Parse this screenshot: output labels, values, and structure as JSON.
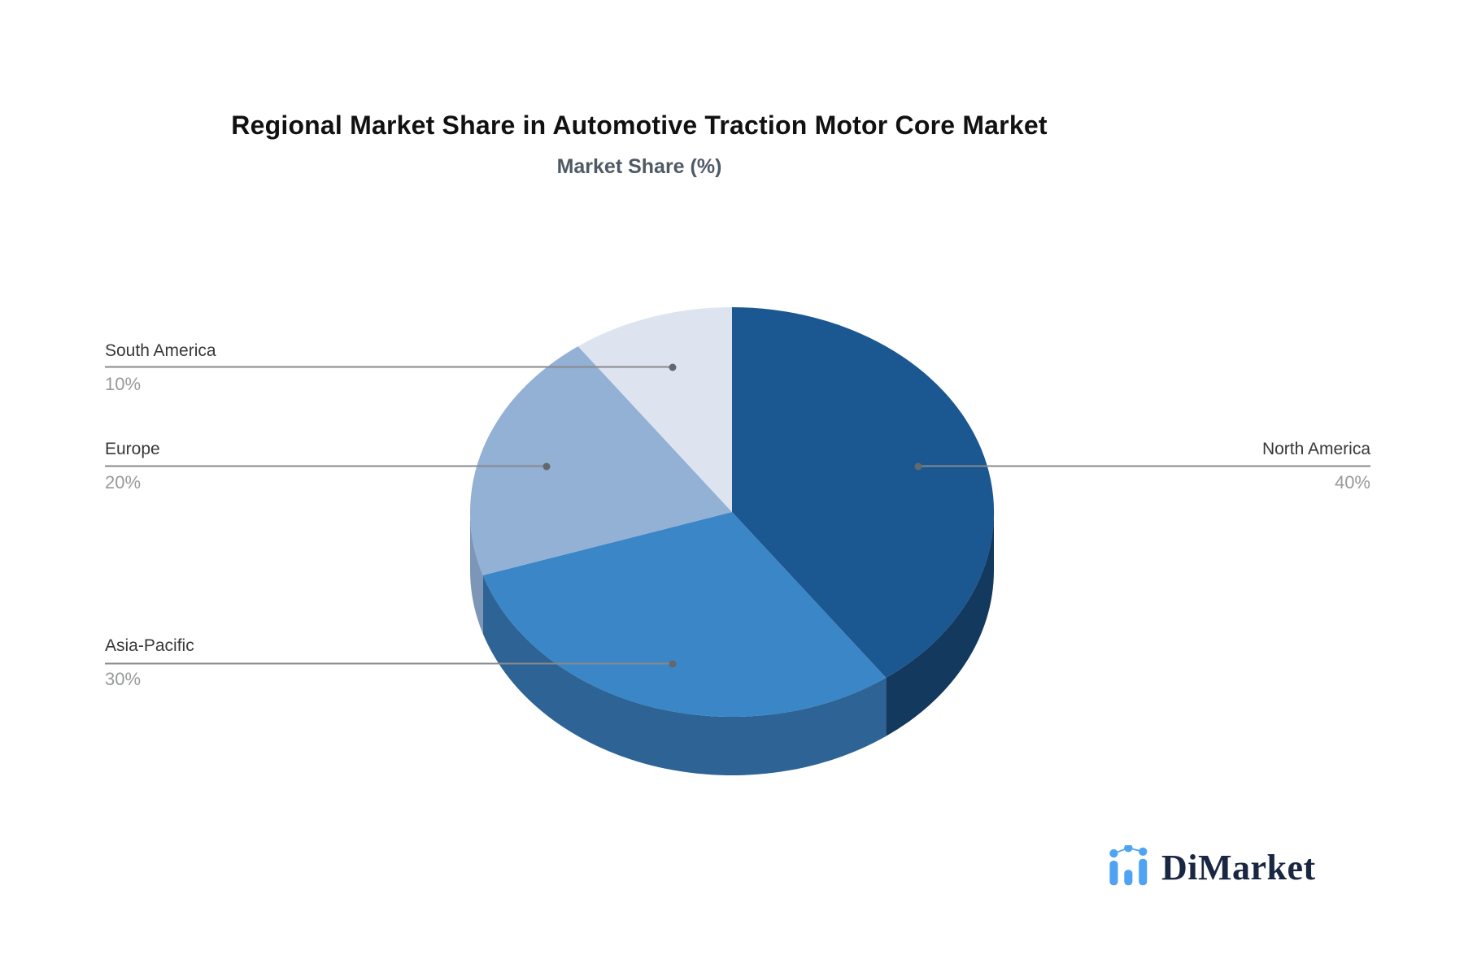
{
  "chart_data": {
    "type": "pie",
    "style": "3d",
    "title": "Regional Market Share in Automotive Traction Motor Core Market",
    "subtitle": "Market Share (%)",
    "unit": "%",
    "start_angle": -90,
    "direction": "clockwise",
    "legend_position": "connector-labels",
    "slices": [
      {
        "name": "North America",
        "value": 40,
        "display": "40%",
        "color": "#1B5891",
        "side_color": "#14395E"
      },
      {
        "name": "Asia-Pacific",
        "value": 30,
        "display": "30%",
        "color": "#3A86C7",
        "side_color": "#2E6495"
      },
      {
        "name": "Europe",
        "value": 20,
        "display": "20%",
        "color": "#93B0D5",
        "side_color": "#7C96B8"
      },
      {
        "name": "South America",
        "value": 10,
        "display": "10%",
        "color": "#DDE4EF",
        "side_color": "#C3CCDA"
      }
    ]
  },
  "logo": {
    "text": "DiMarket",
    "icon": "bar-line-chart-icon",
    "icon_color": "#4FA3F3",
    "text_color": "#1A2742"
  },
  "colors": {
    "background": "#FFFFFF",
    "title": "#111111",
    "subtitle": "#4F5A66",
    "label": "#37383A",
    "percent": "#97999B",
    "connector_line": "#88898B",
    "connector_dot": "#64686C"
  }
}
